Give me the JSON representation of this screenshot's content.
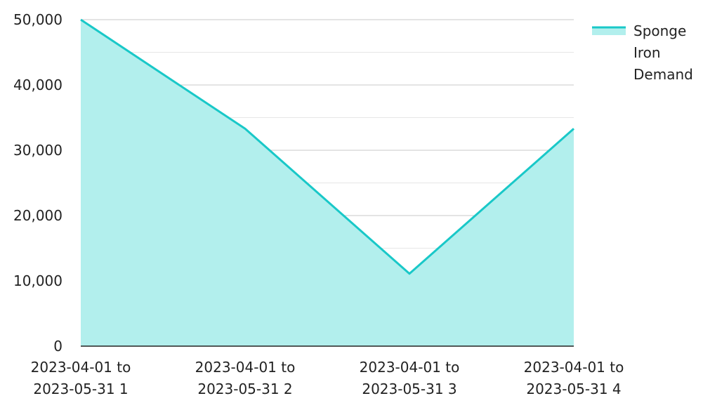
{
  "chart_data": {
    "type": "area",
    "categories": [
      [
        "2023-04-01 to",
        "2023-05-31 1"
      ],
      [
        "2023-04-01 to",
        "2023-05-31 2"
      ],
      [
        "2023-04-01 to",
        "2023-05-31 3"
      ],
      [
        "2023-04-01 to",
        "2023-05-31 4"
      ]
    ],
    "series": [
      {
        "name": "Sponge Iron Demand",
        "values": [
          50000,
          33300,
          11100,
          33300
        ]
      }
    ],
    "ylim": [
      0,
      50000
    ],
    "y_ticks": [
      "0",
      "10,000",
      "20,000",
      "30,000",
      "40,000",
      "50,000"
    ],
    "y_tick_values": [
      0,
      10000,
      20000,
      30000,
      40000,
      50000
    ],
    "grid": true,
    "legend": {
      "placement": "top-right",
      "lines": [
        "Sponge",
        "Iron",
        "Demand"
      ]
    },
    "colors": {
      "line": "#19c8c8",
      "fill": "#b2efed",
      "grid": "#cccccc",
      "axis": "#222222"
    }
  }
}
